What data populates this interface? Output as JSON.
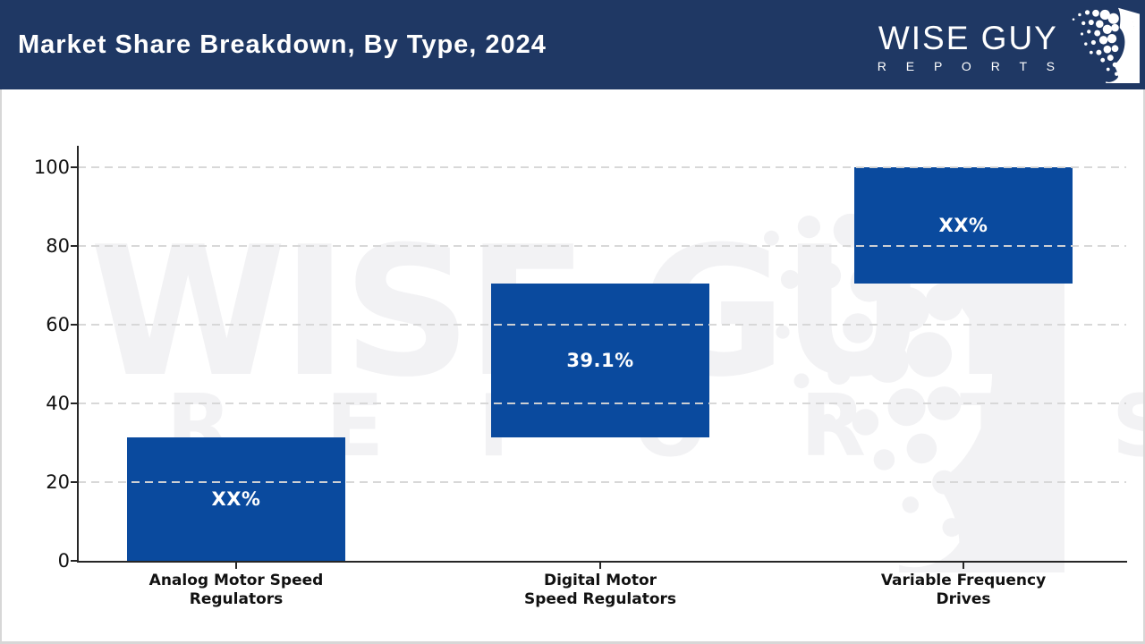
{
  "header": {
    "title": "Market Share Breakdown, By Type, 2024",
    "logo": {
      "line1": "WISE GUY",
      "line2": "R E P O R T S"
    }
  },
  "watermark": {
    "line1": "WISE GUY",
    "line2": "R E P O R T S"
  },
  "chart_data": {
    "type": "bar",
    "variant": "floating-waterfall-segments",
    "title": "Market Share Breakdown, By Type, 2024",
    "categories": [
      "Analog Motor Speed Regulators",
      "Digital Motor Speed Regulators",
      "Variable Frequency Drives"
    ],
    "category_label_lines": [
      [
        "Analog Motor Speed",
        "Regulators"
      ],
      [
        "Digital Motor",
        "Speed Regulators"
      ],
      [
        "Variable Frequency",
        "Drives"
      ]
    ],
    "series": [
      {
        "name": "Analog Motor Speed Regulators",
        "range": [
          0,
          31.4
        ],
        "value_label": "XX%"
      },
      {
        "name": "Digital Motor Speed Regulators",
        "range": [
          31.4,
          70.5
        ],
        "value_label": "39.1%",
        "value": 39.1
      },
      {
        "name": "Variable Frequency Drives",
        "range": [
          70.5,
          100
        ],
        "value_label": "XX%"
      }
    ],
    "yticks": [
      0,
      20,
      40,
      60,
      80,
      100
    ],
    "ylim": [
      0,
      105
    ],
    "xlabel": "",
    "ylabel": "",
    "grid": "horizontal dashed, drawn above bars",
    "legend": false
  },
  "colors": {
    "header_bg": "#1f3864",
    "bar": "#0a4a9e",
    "grid": "#d6d6d6",
    "axis": "#262626",
    "value_label": "#ffffff",
    "watermark": "#f2f2f4"
  }
}
